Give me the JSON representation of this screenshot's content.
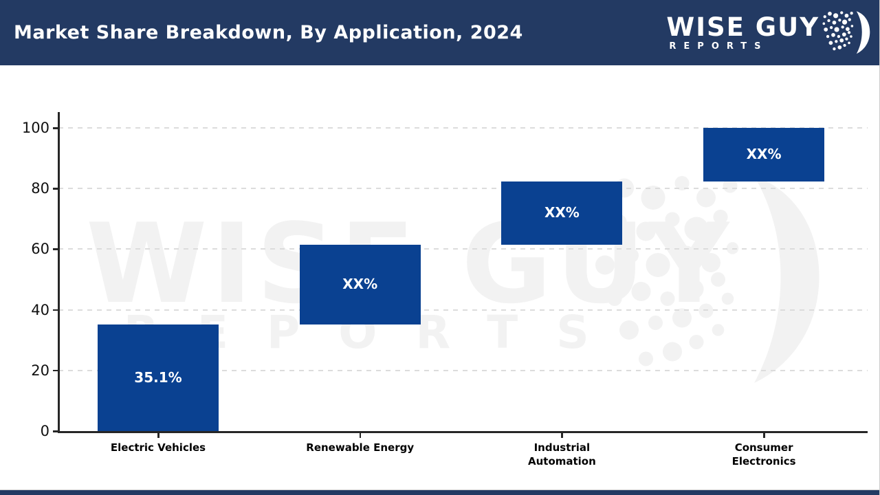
{
  "header": {
    "title": "Market Share Breakdown, By Application, 2024",
    "logo": {
      "line1": "WISE GUY",
      "line2": "REPORTS"
    }
  },
  "watermark": {
    "line1": "WISE GUY",
    "line2": "REPORTS"
  },
  "colors": {
    "header_bg": "#233a63",
    "bar": "#0a4191",
    "bar_label": "#ffffff",
    "gridline": "#dcdcdc",
    "axis": "#262626",
    "watermark": "#f2f2f2"
  },
  "chart_data": {
    "type": "bar",
    "subtype": "waterfall",
    "title": "Market Share Breakdown, By Application, 2024",
    "xlabel": "",
    "ylabel": "",
    "categories": [
      "Electric Vehicles",
      "Renewable Energy",
      "Industrial\nAutomation",
      "Consumer\nElectronics"
    ],
    "segments": [
      {
        "category": "Electric Vehicles",
        "start": 0,
        "end": 35.1,
        "label": "35.1%"
      },
      {
        "category": "Renewable Energy",
        "start": 35.1,
        "end": 61.4,
        "label": "XX%"
      },
      {
        "category": "Industrial\nAutomation",
        "start": 61.4,
        "end": 82.4,
        "label": "XX%"
      },
      {
        "category": "Consumer\nElectronics",
        "start": 82.4,
        "end": 100,
        "label": "XX%"
      }
    ],
    "ylim": [
      0,
      100
    ],
    "yticks": [
      0,
      20,
      40,
      60,
      80,
      100
    ],
    "grid": "horizontal dashed, ticks 20..100",
    "legend": "none",
    "bar_color": "#0a4191",
    "value_label_position": "centered inside bar, white bold"
  }
}
